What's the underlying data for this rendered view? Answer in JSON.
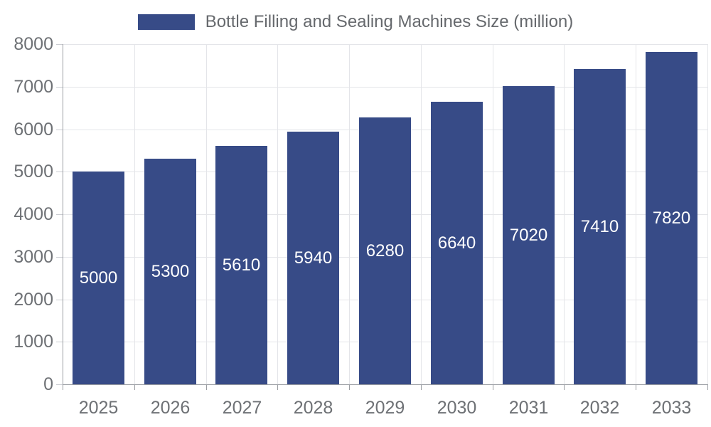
{
  "legend": {
    "label": "Bottle Filling and Sealing Machines Size (million)"
  },
  "chart_data": {
    "type": "bar",
    "title": "Bottle Filling and Sealing Machines Size (million)",
    "series_name": "Bottle Filling and Sealing Machines Size (million)",
    "categories": [
      "2025",
      "2026",
      "2027",
      "2028",
      "2029",
      "2030",
      "2031",
      "2032",
      "2033"
    ],
    "values": [
      5000,
      5300,
      5610,
      5940,
      6280,
      6640,
      7020,
      7410,
      7820
    ],
    "xlabel": "",
    "ylabel": "",
    "ylim": [
      0,
      8000
    ],
    "yticks": [
      0,
      1000,
      2000,
      3000,
      4000,
      5000,
      6000,
      7000,
      8000
    ],
    "grid": true,
    "legend_position": "top-center",
    "value_label_position": "inside-center"
  },
  "style": {
    "bar_color": "#374B87",
    "bar_label_color": "#FFFFFF",
    "axis_text_color": "#6E7175",
    "legend_text_color": "#66696D",
    "grid_color": "#E4E5E9",
    "y_tick_color": "#CBCDD2",
    "axis_line_color": "#9B9EA3",
    "background": "#FFFFFF"
  }
}
